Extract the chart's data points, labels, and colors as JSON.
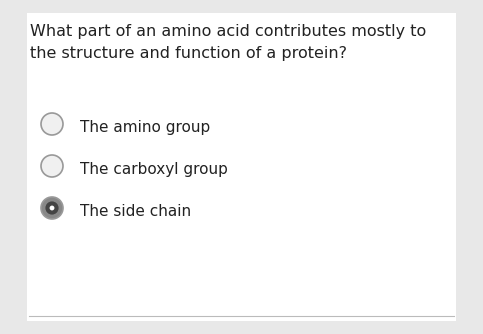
{
  "question_line1": "What part of an amino acid contributes mostly to",
  "question_line2": "the structure and function of a protein?",
  "options": [
    {
      "text": "The amino group",
      "selected": false
    },
    {
      "text": "The carboxyl group",
      "selected": false
    },
    {
      "text": "The side chain",
      "selected": true
    }
  ],
  "bg_color": "#e8e8e8",
  "card_color": "#ffffff",
  "text_color": "#222222",
  "radio_outer_color": "#999999",
  "radio_inner_selected": "#444444",
  "radio_fill_unselected": "#e8e8e8",
  "radio_fill_selected_outer": "#888888",
  "question_fontsize": 11.5,
  "option_fontsize": 11,
  "font_family": "DejaVu Sans"
}
